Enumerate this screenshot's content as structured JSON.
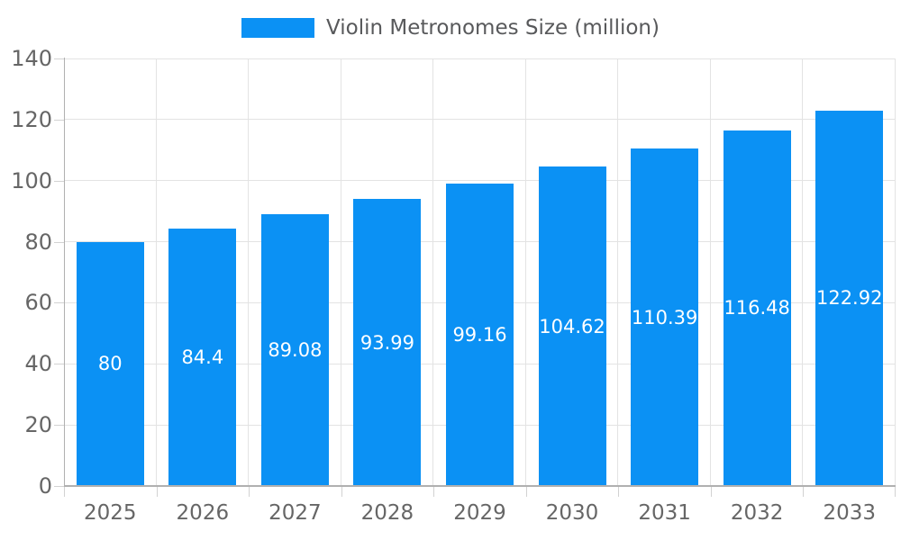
{
  "chart_data": {
    "type": "bar",
    "title": "Violin Metronomes Size (million)",
    "categories": [
      "2025",
      "2026",
      "2027",
      "2028",
      "2029",
      "2030",
      "2031",
      "2032",
      "2033"
    ],
    "values": [
      80,
      84.4,
      89.08,
      93.99,
      99.16,
      104.62,
      110.39,
      116.48,
      122.92
    ],
    "value_labels": [
      "80",
      "84.4",
      "89.08",
      "93.99",
      "99.16",
      "104.62",
      "110.39",
      "116.48",
      "122.92"
    ],
    "xlabel": "",
    "ylabel": "",
    "ylim": [
      0,
      140
    ],
    "ytick_step": 20,
    "yticks": [
      "0",
      "20",
      "40",
      "60",
      "80",
      "100",
      "120",
      "140"
    ],
    "grid": "both",
    "legend_position": "top-center",
    "colors": {
      "bar": "#0b91f4",
      "grid": "#e3e3e3",
      "axis": "#b0b0b0",
      "tick": "#d2d2d2",
      "label": "#666666",
      "title": "#58595b",
      "value_label": "#ffffff",
      "background": "#ffffff"
    }
  }
}
